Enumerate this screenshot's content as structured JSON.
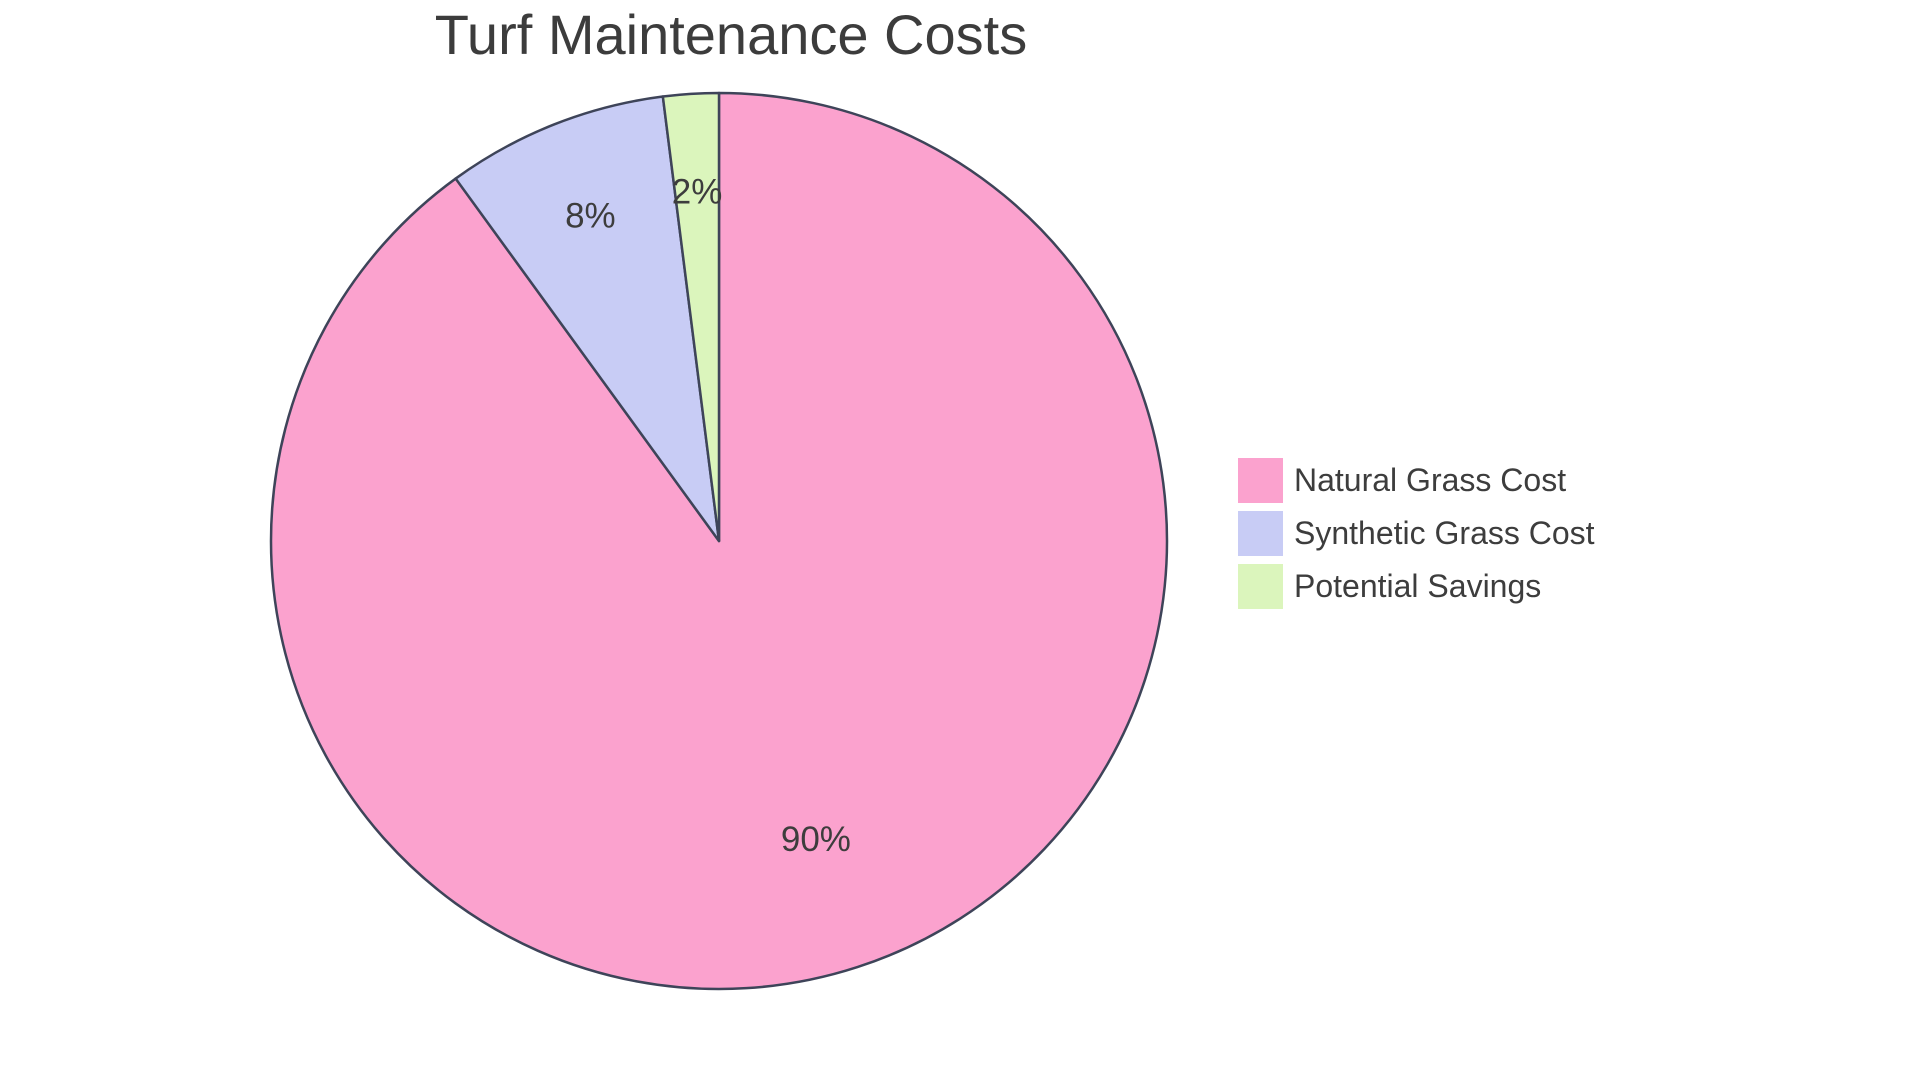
{
  "title": "Turf Maintenance Costs",
  "chart_data": {
    "type": "pie",
    "title": "Turf Maintenance Costs",
    "labels": [
      "Natural Grass Cost",
      "Synthetic Grass Cost",
      "Potential Savings"
    ],
    "values": [
      90,
      8,
      2
    ],
    "percent_labels": [
      "90%",
      "8%",
      "2%"
    ],
    "colors": [
      "#FBA2CE",
      "#C8CCF5",
      "#DBF5BC"
    ],
    "stroke_color": "#3E4459",
    "label_color": "#3D3D3D",
    "title_color": "#3C3C3C",
    "background": "#FFFFFF",
    "start_angle": "top",
    "direction": "clockwise",
    "label_radius_fraction": [
      0.7,
      0.78,
      0.78
    ],
    "legend_position": "right",
    "grid": false
  },
  "legend": {
    "items": [
      {
        "label": "Natural Grass Cost",
        "color": "#FBA2CE"
      },
      {
        "label": "Synthetic Grass Cost",
        "color": "#C8CCF5"
      },
      {
        "label": "Potential Savings",
        "color": "#DBF5BC"
      }
    ]
  }
}
